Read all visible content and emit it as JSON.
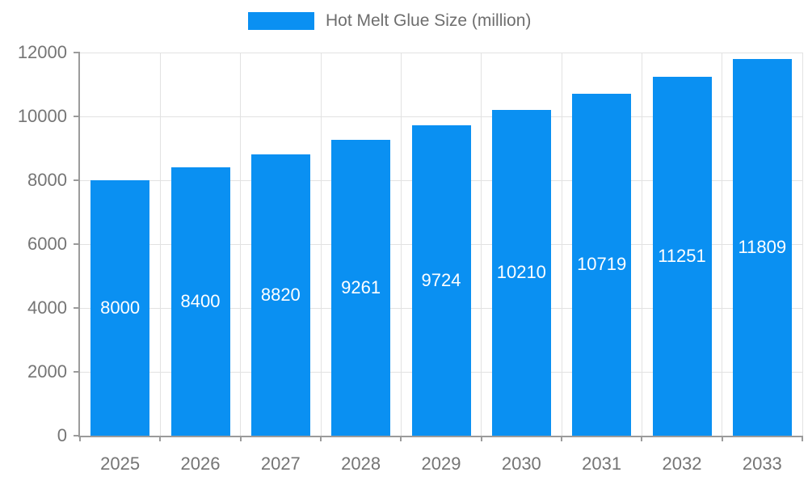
{
  "chart": {
    "legend": {
      "label": "Hot Melt Glue Size (million)"
    },
    "colors": {
      "bar": "#0a90f2",
      "grid": "#e2e2e2",
      "axis": "#9b9b9b",
      "axis_text": "#757575",
      "legend_text": "#6e6e6e",
      "value_text": "#ffffff",
      "background": "#ffffff"
    }
  },
  "chart_data": {
    "type": "bar",
    "title": "Hot Melt Glue Size (million)",
    "categories": [
      "2025",
      "2026",
      "2027",
      "2028",
      "2029",
      "2030",
      "2031",
      "2032",
      "2033"
    ],
    "values": [
      8000,
      8400,
      8820,
      9261,
      9724,
      10210,
      10719,
      11251,
      11809
    ],
    "series": [
      {
        "name": "Hot Melt Glue Size (million)",
        "values": [
          8000,
          8400,
          8820,
          9261,
          9724,
          10210,
          10719,
          11251,
          11809
        ]
      }
    ],
    "xlabel": "",
    "ylabel": "",
    "ylim": [
      0,
      12000
    ],
    "yticks": [
      0,
      2000,
      4000,
      6000,
      8000,
      10000,
      12000
    ],
    "grid": true,
    "legend_position": "top-center",
    "value_label_position": "inside-center"
  }
}
